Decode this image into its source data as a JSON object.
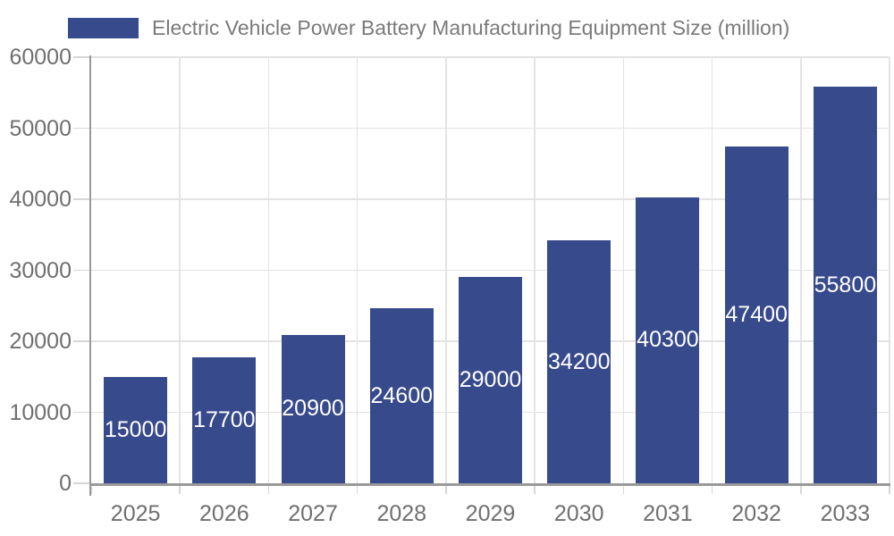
{
  "chart_data": {
    "type": "bar",
    "title": "Electric Vehicle Power Battery Manufacturing Equipment Size (million)",
    "series_name": "Electric Vehicle Power Battery Manufacturing Equipment Size (million)",
    "categories": [
      "2025",
      "2026",
      "2027",
      "2028",
      "2029",
      "2030",
      "2031",
      "2032",
      "2033"
    ],
    "values": [
      15000,
      17700,
      20900,
      24600,
      29000,
      34200,
      40300,
      47400,
      55800
    ],
    "xlabel": "",
    "ylabel": "",
    "ylim": [
      0,
      60000
    ],
    "ytick_step": 10000,
    "yticks": [
      "0",
      "10000",
      "20000",
      "30000",
      "40000",
      "50000",
      "60000"
    ],
    "grid": true,
    "legend_position": "top",
    "bar_labels_inside": true,
    "colors": {
      "bar": "#374A8B",
      "bar_label": "#ffffff",
      "axis_line": "#999999",
      "grid_line": "#e3e3e3",
      "tick_mark": "#d6d6d6",
      "tick_text": "#6f6f6f",
      "title_text": "#7a7a7a",
      "background": "#ffffff"
    }
  }
}
